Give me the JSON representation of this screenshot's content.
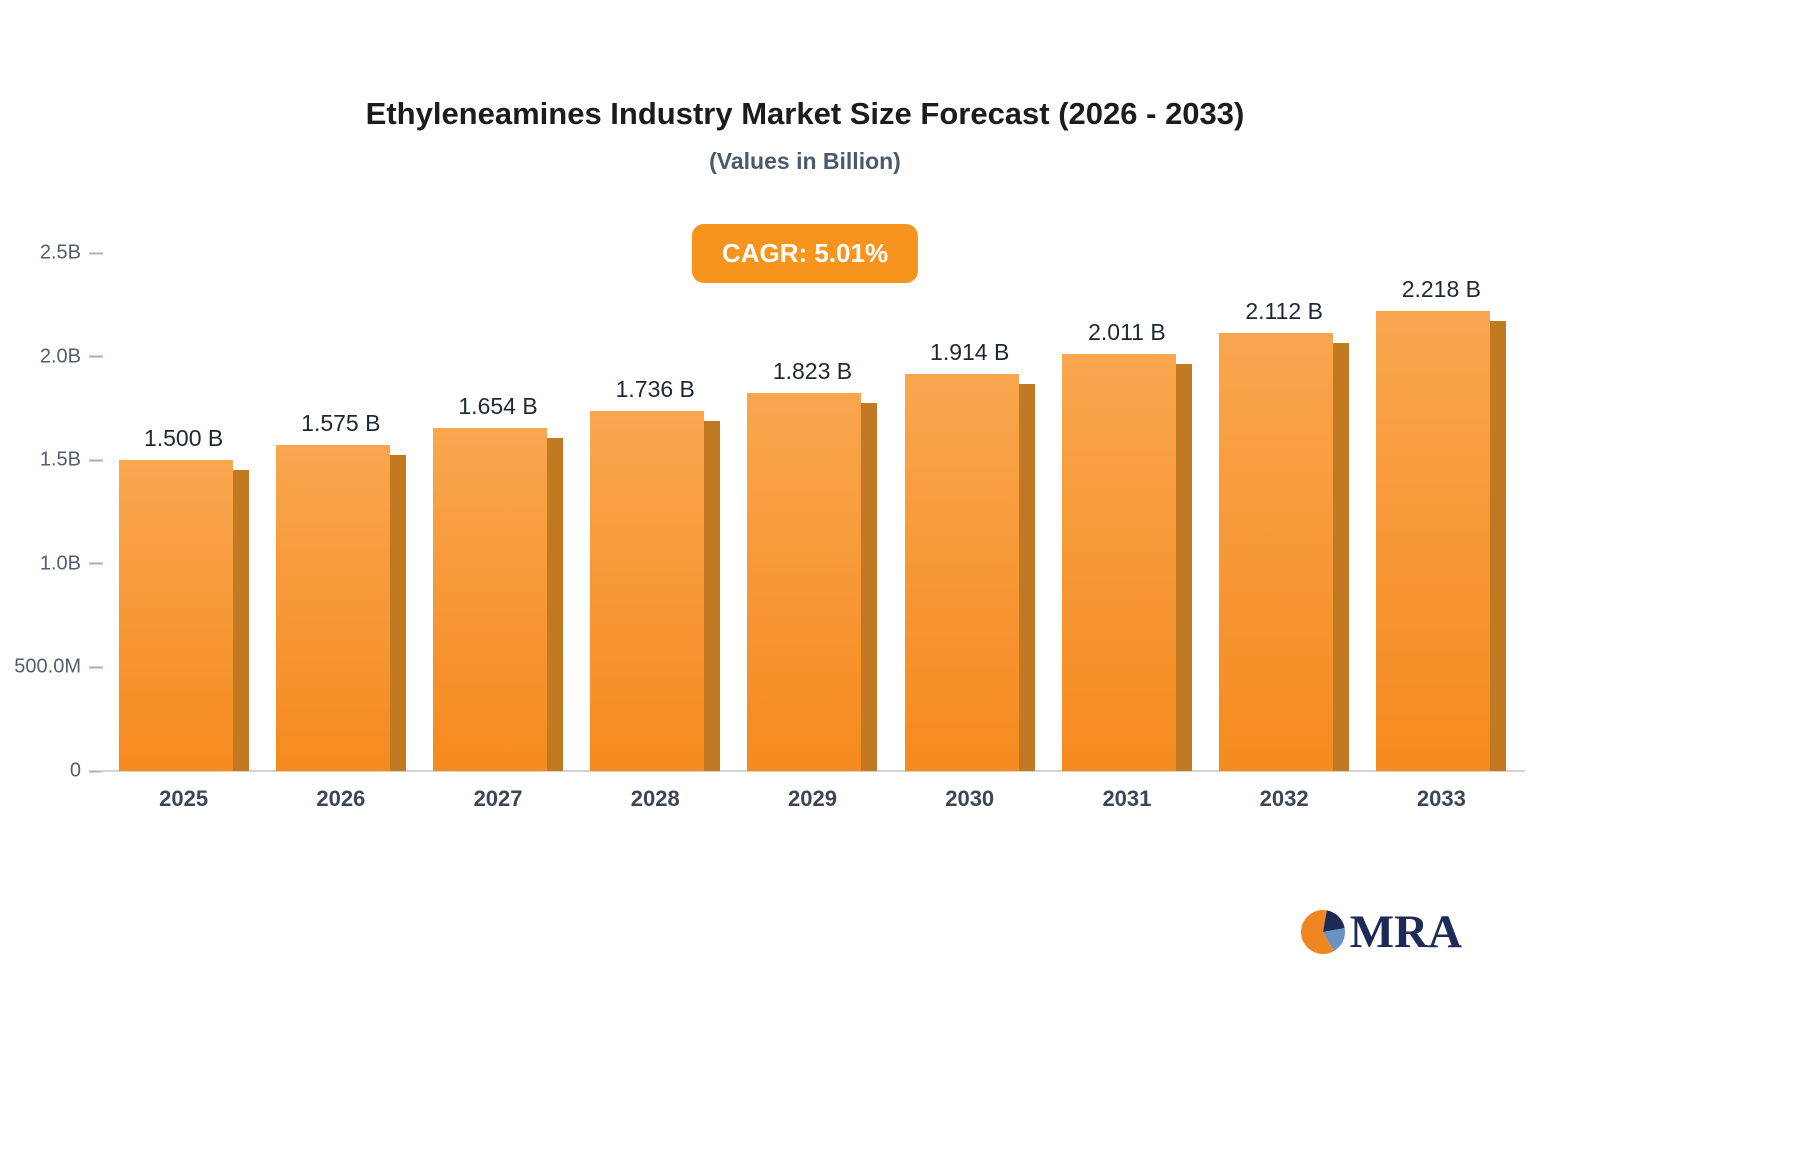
{
  "chart_data": {
    "type": "bar",
    "title": "Ethyleneamines Industry Market Size Forecast (2026 - 2033)",
    "subtitle": "(Values in Billion)",
    "badge": "CAGR: 5.01%",
    "categories": [
      "2025",
      "2026",
      "2027",
      "2028",
      "2029",
      "2030",
      "2031",
      "2032",
      "2033"
    ],
    "values": [
      1.5,
      1.575,
      1.654,
      1.736,
      1.823,
      1.914,
      2.011,
      2.112,
      2.218
    ],
    "value_labels": [
      "1.500 B",
      "1.575 B",
      "1.654 B",
      "1.736 B",
      "1.823 B",
      "1.914 B",
      "2.011 B",
      "2.112 B",
      "2.218 B"
    ],
    "y_ticks": [
      {
        "label": "2.5B",
        "value": 2.5
      },
      {
        "label": "2.0B",
        "value": 2.0
      },
      {
        "label": "1.5B",
        "value": 1.5
      },
      {
        "label": "1.0B",
        "value": 1.0
      },
      {
        "label": "500.0M",
        "value": 0.5
      },
      {
        "label": "0",
        "value": 0
      }
    ],
    "ylim": [
      0,
      2.5
    ],
    "ylabel": "",
    "xlabel": "",
    "grid": false,
    "legend": false,
    "accent": "#F7941E",
    "bar_color_top": "#F9A64F",
    "bar_color_bottom": "#F58A1E",
    "bar_side_color": "#C17A21"
  },
  "logo": {
    "text": "MRA"
  }
}
